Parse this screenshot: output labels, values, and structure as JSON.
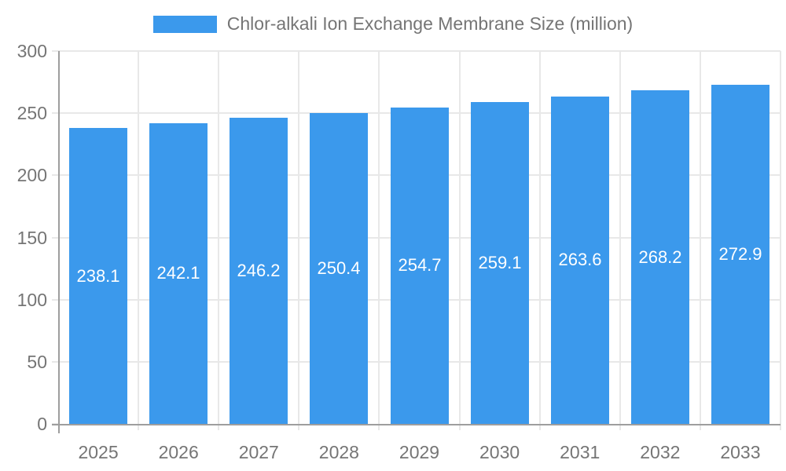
{
  "chart_data": {
    "type": "bar",
    "title": "Chlor-alkali Ion Exchange Membrane Size (million)",
    "categories": [
      "2025",
      "2026",
      "2027",
      "2028",
      "2029",
      "2030",
      "2031",
      "2032",
      "2033"
    ],
    "values": [
      238.1,
      242.1,
      246.2,
      250.4,
      254.7,
      259.1,
      263.6,
      268.2,
      272.9
    ],
    "value_labels": [
      "238.1",
      "242.1",
      "246.2",
      "250.4",
      "254.7",
      "259.1",
      "263.6",
      "268.2",
      "272.9"
    ],
    "ylim": [
      0,
      300
    ],
    "yticks": [
      0,
      50,
      100,
      150,
      200,
      250,
      300
    ],
    "ytick_labels": [
      "0",
      "50",
      "100",
      "150",
      "200",
      "250",
      "300"
    ],
    "grid": true,
    "legend_position": "top",
    "colors": {
      "bar": "#3b99ec",
      "bar_value_text": "#ffffff",
      "axis_text": "#757575",
      "legend_text": "#757575",
      "gridline": "#e8e8e8",
      "axis_line": "#9e9e9e",
      "background": "#ffffff"
    }
  }
}
